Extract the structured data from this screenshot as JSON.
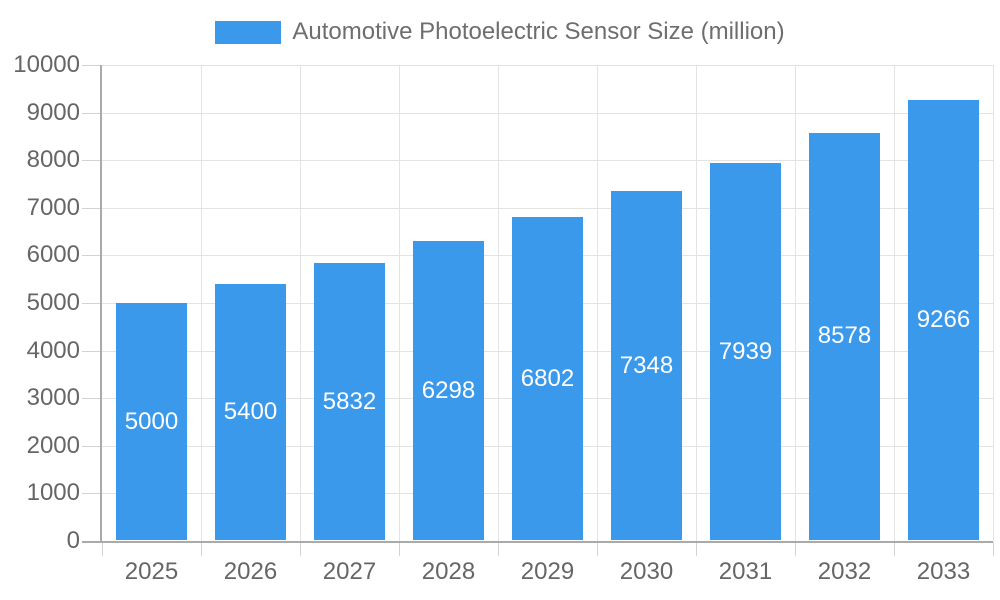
{
  "chart_data": {
    "type": "bar",
    "title": "",
    "legend": {
      "label": "Automotive Photoelectric Sensor Size (million)",
      "position": "top"
    },
    "categories": [
      "2025",
      "2026",
      "2027",
      "2028",
      "2029",
      "2030",
      "2031",
      "2032",
      "2033"
    ],
    "series": [
      {
        "name": "Automotive Photoelectric Sensor Size (million)",
        "values": [
          5000,
          5400,
          5832,
          6298,
          6802,
          7348,
          7939,
          8578,
          9266
        ]
      }
    ],
    "data_labels": {
      "visible": true,
      "position": "inside-center",
      "values": [
        "5000",
        "5400",
        "5832",
        "6298",
        "6802",
        "7348",
        "7939",
        "8578",
        "9266"
      ]
    },
    "xlabel": "",
    "ylabel": "",
    "ylim": [
      0,
      10000
    ],
    "ytick_step": 1000,
    "ytick_labels": [
      "0",
      "1000",
      "2000",
      "3000",
      "4000",
      "5000",
      "6000",
      "7000",
      "8000",
      "9000",
      "10000"
    ],
    "grid": true,
    "colors": {
      "bar": "#3B99EC",
      "bar_value_text": "#FFFFFF",
      "gridline": "#E3E3E3",
      "tick": "#D2D2D2",
      "axis_line": "#AAAAAA",
      "axis_text": "#666666",
      "legend_text": "#6E6E6E",
      "background": "#FFFFFF"
    }
  }
}
